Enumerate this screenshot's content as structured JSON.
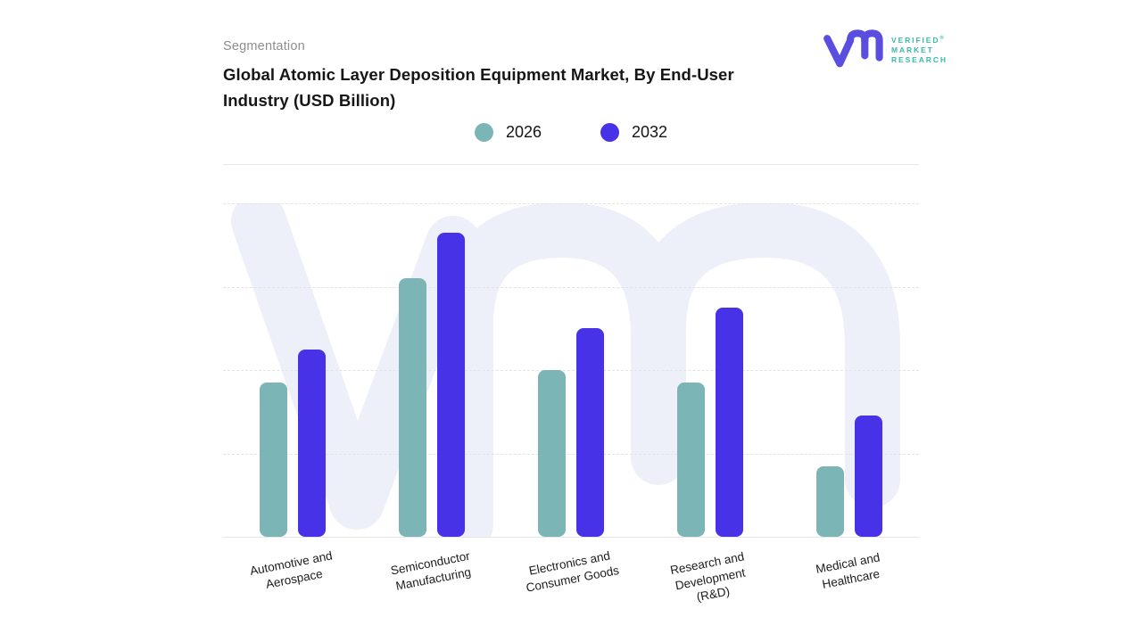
{
  "header": {
    "eyebrow": "Segmentation",
    "title": "Global Atomic Layer Deposition Equipment Market, By End-User Industry (USD Billion)"
  },
  "logo": {
    "mark": "vmr-monogram",
    "mark_color": "#5a4ee0",
    "text_color": "#3bb9ab",
    "line1": "VERIFIED",
    "line2": "MARKET",
    "line3": "RESEARCH",
    "registered_symbol": "®"
  },
  "colors": {
    "series_2026": "#7cb5b6",
    "series_2032": "#4832e8",
    "gridline": "#e3e3e3",
    "axis_line": "#e7e7e7",
    "watermark": "#eef0f9",
    "title_text": "#161616",
    "eyebrow_text": "#8e8e8e"
  },
  "chart_data": {
    "type": "bar",
    "title": "Global Atomic Layer Deposition Equipment Market, By End-User Industry (USD Billion)",
    "xlabel": "",
    "ylabel": "",
    "unit": "USD Billion",
    "y_axis_labels_visible": false,
    "value_note": "No numeric y-axis labels shown; values estimated in gridline units (4 equal intervals between baseline and top gridline)",
    "ylim": [
      0,
      4
    ],
    "grid": "horizontal dashed",
    "legend_position": "top-center",
    "categories": [
      {
        "label": "Automotive and Aerospace",
        "lines": [
          "Automotive and",
          "Aerospace"
        ]
      },
      {
        "label": "Semiconductor Manufacturing",
        "lines": [
          "Semiconductor",
          "Manufacturing"
        ]
      },
      {
        "label": "Electronics and Consumer Goods",
        "lines": [
          "Electronics and",
          "Consumer Goods"
        ]
      },
      {
        "label": "Research and Development (R&D)",
        "lines": [
          "Research and",
          "Development",
          "(R&D)"
        ]
      },
      {
        "label": "Medical and Healthcare",
        "lines": [
          "Medical and",
          "Healthcare"
        ]
      }
    ],
    "series": [
      {
        "name": "2026",
        "color": "#7cb5b6",
        "values": [
          1.85,
          3.1,
          2.0,
          1.85,
          0.85
        ]
      },
      {
        "name": "2032",
        "color": "#4832e8",
        "values": [
          2.25,
          3.65,
          2.5,
          2.75,
          1.45
        ]
      }
    ]
  }
}
